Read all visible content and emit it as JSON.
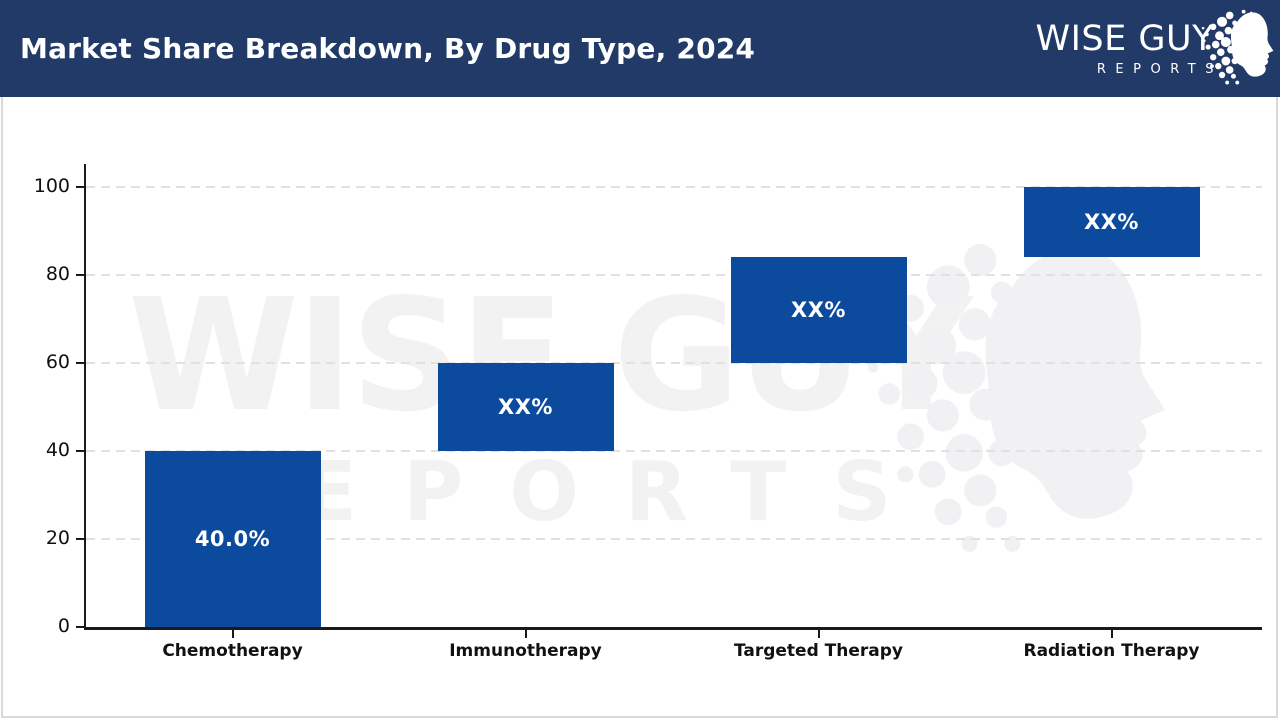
{
  "header": {
    "title": "Market Share Breakdown, By Drug Type, 2024",
    "logo": {
      "line1": "WISE GUY",
      "line2": "REPORTS"
    }
  },
  "watermark": {
    "line1": "WISE GUY",
    "line2": "REPORTS"
  },
  "chart_data": {
    "type": "bar",
    "subtype": "waterfall",
    "title": "Market Share Breakdown, By Drug Type, 2024",
    "categories": [
      "Chemotherapy",
      "Immunotherapy",
      "Targeted Therapy",
      "Radiation Therapy"
    ],
    "segments": [
      {
        "category": "Chemotherapy",
        "start": 0,
        "end": 40,
        "value": 40,
        "label": "40.0%"
      },
      {
        "category": "Immunotherapy",
        "start": 40,
        "end": 60,
        "value": 20,
        "label": "XX%"
      },
      {
        "category": "Targeted Therapy",
        "start": 60,
        "end": 84,
        "value": 24,
        "label": "XX%"
      },
      {
        "category": "Radiation Therapy",
        "start": 84,
        "end": 100,
        "value": 16,
        "label": "XX%"
      }
    ],
    "xlabel": "",
    "ylabel": "",
    "ylim": [
      0,
      100
    ],
    "yticks": [
      0,
      20,
      40,
      60,
      80,
      100
    ],
    "grid": "horizontal-dashed",
    "legend_position": "none",
    "colors": {
      "bar": "#0c4a9e",
      "bar_label": "#ffffff",
      "gridline": "#e1e1e1",
      "axis": "#1a1a1a",
      "header_bg": "#213a68",
      "watermark": "#f2f2f3"
    }
  }
}
